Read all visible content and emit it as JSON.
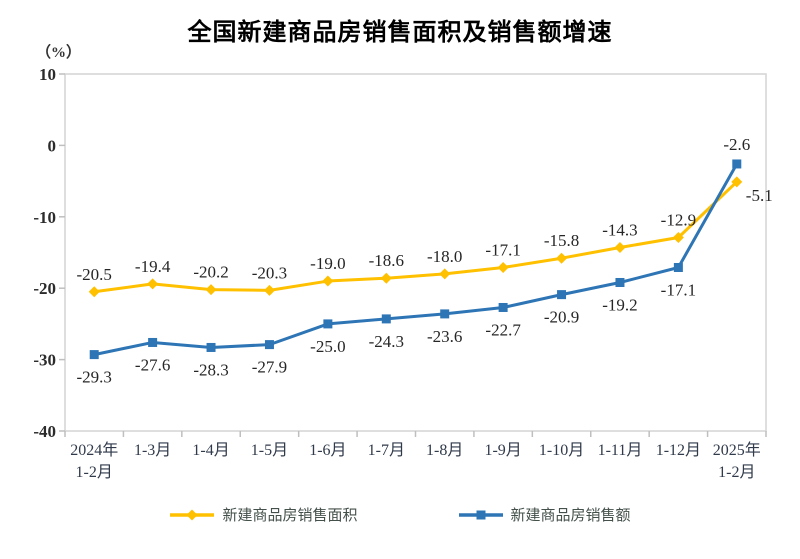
{
  "chart_data": {
    "type": "line",
    "title": "全国新建商品房销售面积及销售额增速",
    "unit_label": "（%）",
    "categories": [
      [
        "2024年",
        "1-2月"
      ],
      "1-3月",
      "1-4月",
      "1-5月",
      "1-6月",
      "1-7月",
      "1-8月",
      "1-9月",
      "1-10月",
      "1-11月",
      "1-12月",
      [
        "2025年",
        "1-2月"
      ]
    ],
    "series": [
      {
        "name": "新建商品房销售面积",
        "color": "#FFC000",
        "marker": "diamond",
        "label_position": "above",
        "values": [
          -20.5,
          -19.4,
          -20.2,
          -20.3,
          -19.0,
          -18.6,
          -18.0,
          -17.1,
          -15.8,
          -14.3,
          -12.9,
          -5.1
        ]
      },
      {
        "name": "新建商品房销售额",
        "color": "#2E75B6",
        "marker": "square",
        "label_position": "below",
        "values": [
          -29.3,
          -27.6,
          -28.3,
          -27.9,
          -25.0,
          -24.3,
          -23.6,
          -22.7,
          -20.9,
          -19.2,
          -17.1,
          -2.6
        ]
      }
    ],
    "y_axis": {
      "min": -40,
      "max": 10,
      "step": 10,
      "ticks": [
        10,
        0,
        -10,
        -20,
        -30,
        -40
      ]
    },
    "grid": false,
    "legend_position": "bottom",
    "axis_color": "#d4d4d4",
    "tick_color": "#bfbfbf"
  }
}
